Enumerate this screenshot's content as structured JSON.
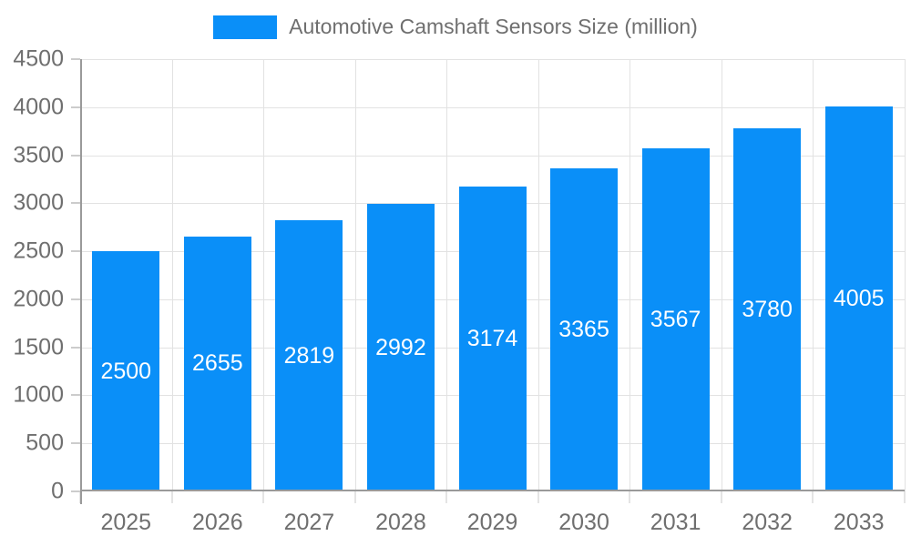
{
  "chart_data": {
    "type": "bar",
    "title": "Automotive Camshaft Sensors Size (million)",
    "series_name": "Automotive Camshaft Sensors Size (million)",
    "categories": [
      "2025",
      "2026",
      "2027",
      "2028",
      "2029",
      "2030",
      "2031",
      "2032",
      "2033"
    ],
    "values": [
      2500,
      2655,
      2819,
      2992,
      3174,
      3365,
      3567,
      3780,
      4005
    ],
    "xlabel": "",
    "ylabel": "",
    "ylim": [
      0,
      4500
    ],
    "ytick_step": 500,
    "grid": true,
    "legend_position": "top-center",
    "value_labels": "inside-center"
  },
  "colors": {
    "bar": "#0a8ff8",
    "grid_line": "#e2e2e2",
    "axis_line": "#9a9a9a",
    "axis_text": "#6f6f6f",
    "bar_label": "#ffffff",
    "background": "#ffffff"
  }
}
